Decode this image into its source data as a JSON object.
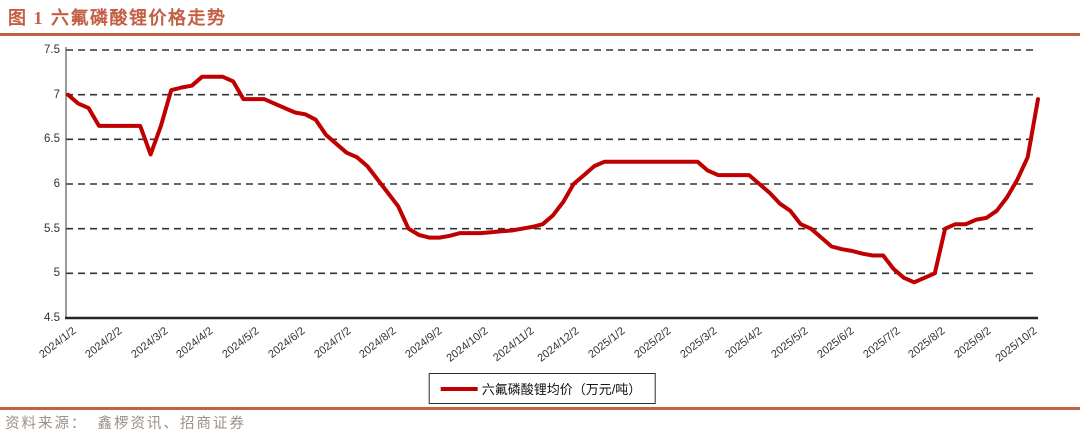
{
  "figure": {
    "label": "图 1",
    "title": "六氟磷酸锂价格走势"
  },
  "chart_data": {
    "type": "line",
    "title": "六氟磷酸锂价格走势",
    "x_note": "weekly price observations from 2024/1/2 to late 2025/10",
    "x_ticks": [
      "2024/1/2",
      "2024/2/2",
      "2024/3/2",
      "2024/4/2",
      "2024/5/2",
      "2024/6/2",
      "2024/7/2",
      "2024/8/2",
      "2024/9/2",
      "2024/10/2",
      "2024/11/2",
      "2024/12/2",
      "2025/1/2",
      "2025/2/2",
      "2025/3/2",
      "2025/4/2",
      "2025/5/2",
      "2025/6/2",
      "2025/7/2",
      "2025/8/2",
      "2025/9/2",
      "2025/10/2"
    ],
    "y_ticks": [
      "7.5",
      "7",
      "6.5",
      "6",
      "5.5",
      "5",
      "4.5"
    ],
    "ylim": [
      4.5,
      7.5
    ],
    "grid": "horizontal dashed lines at every 0.5",
    "legend_position": "bottom-center boxed",
    "series": [
      {
        "name": "六氟磷酸锂均价（万元/吨）",
        "color": "#C00000",
        "values": [
          7.0,
          6.9,
          6.85,
          6.65,
          6.65,
          6.65,
          6.65,
          6.65,
          6.33,
          6.65,
          7.05,
          7.08,
          7.1,
          7.2,
          7.2,
          7.2,
          7.15,
          6.95,
          6.95,
          6.95,
          6.9,
          6.85,
          6.8,
          6.78,
          6.72,
          6.55,
          6.45,
          6.35,
          6.3,
          6.2,
          6.05,
          5.9,
          5.75,
          5.5,
          5.43,
          5.4,
          5.4,
          5.42,
          5.45,
          5.45,
          5.45,
          5.46,
          5.47,
          5.48,
          5.5,
          5.52,
          5.55,
          5.65,
          5.8,
          6.0,
          6.1,
          6.2,
          6.25,
          6.25,
          6.25,
          6.25,
          6.25,
          6.25,
          6.25,
          6.25,
          6.25,
          6.25,
          6.15,
          6.1,
          6.1,
          6.1,
          6.1,
          6.0,
          5.9,
          5.78,
          5.7,
          5.55,
          5.5,
          5.4,
          5.3,
          5.27,
          5.25,
          5.22,
          5.2,
          5.2,
          5.05,
          4.95,
          4.9,
          4.95,
          5.0,
          5.5,
          5.55,
          5.55,
          5.6,
          5.62,
          5.7,
          5.85,
          6.05,
          6.3,
          6.95
        ]
      }
    ]
  },
  "footer": {
    "source_label": "资料来源：",
    "source_text": "鑫椤资讯、招商证券"
  },
  "colors": {
    "accent": "#C35F45",
    "line": "#C00000",
    "grid": "#333333",
    "axis": "#262626",
    "tick_text": "#333333",
    "footer_text": "#9A9189"
  }
}
